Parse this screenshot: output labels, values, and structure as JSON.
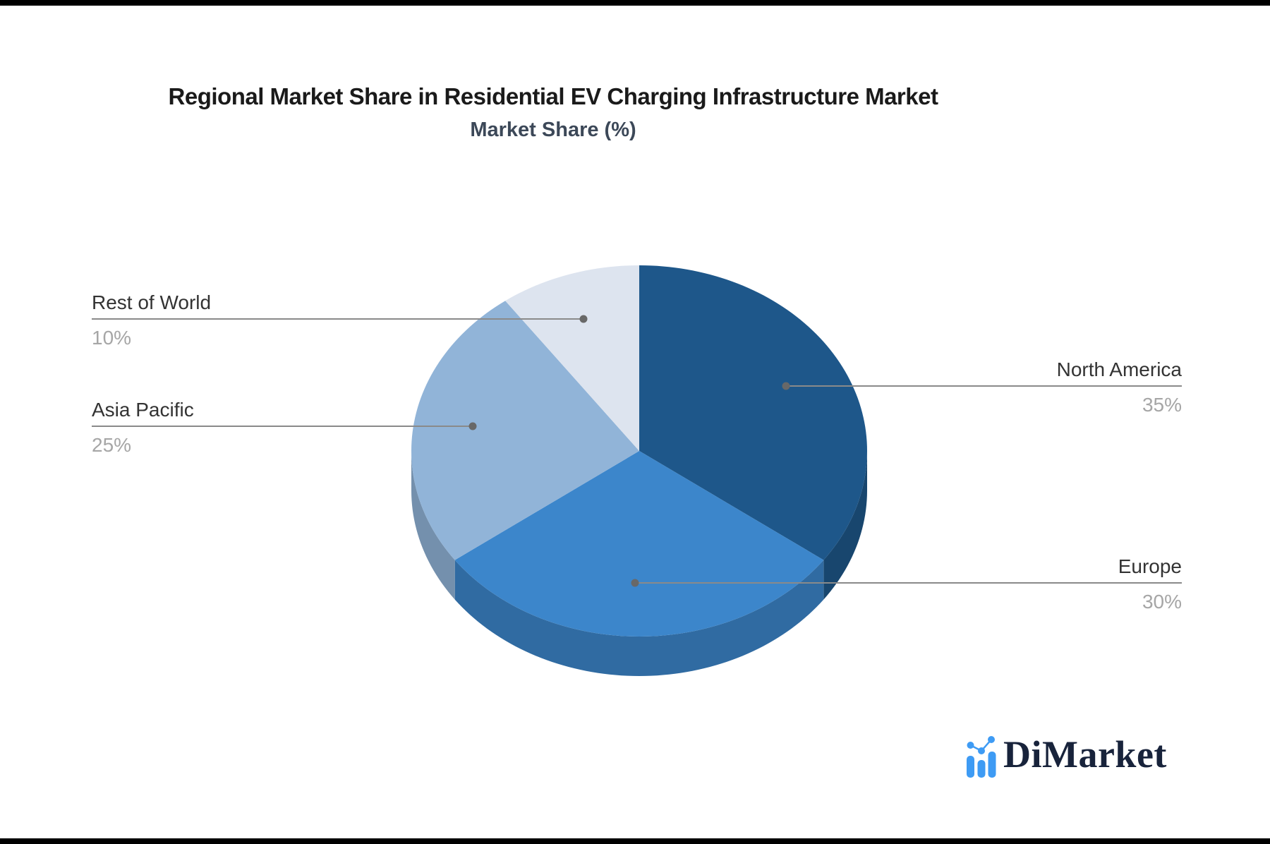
{
  "page": {
    "title": "Regional Market Share in Residential EV Charging Infrastructure Market",
    "subtitle": "Market Share (%)"
  },
  "logo": {
    "name": "DiMarket",
    "icon": "bar-line-chart-icon",
    "text_color": "#18233B",
    "icon_color": "#3E9BF4"
  },
  "chart_data": {
    "type": "pie",
    "style": "3d",
    "title": "Regional Market Share in Residential EV Charging Infrastructure Market",
    "subtitle": "Market Share (%)",
    "unit": "%",
    "start_angle": "top",
    "direction": "clockwise",
    "legend_position": "none",
    "labels": "leader-lines",
    "slices": [
      {
        "label": "North America",
        "value": 35,
        "display": "35%",
        "color": "#1E578A"
      },
      {
        "label": "Europe",
        "value": 30,
        "display": "30%",
        "color": "#3C86CB"
      },
      {
        "label": "Asia Pacific",
        "value": 25,
        "display": "25%",
        "color": "#91B4D8"
      },
      {
        "label": "Rest of World",
        "value": 10,
        "display": "10%",
        "color": "#DDE4EF"
      }
    ],
    "leader_line_color": "#8A8A8A",
    "leader_dot_color": "#686868",
    "label_color": "#333333",
    "value_color": "#A6A6A6"
  }
}
